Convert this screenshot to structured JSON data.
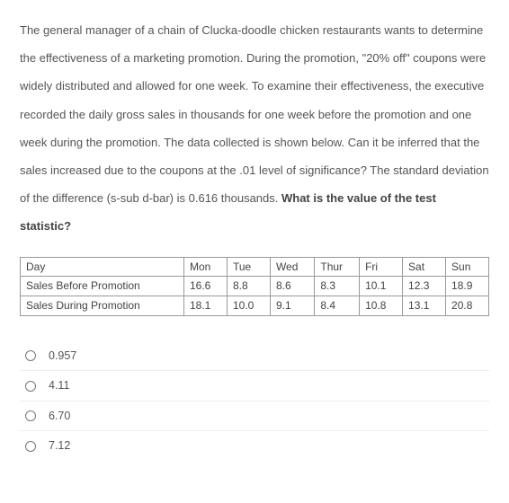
{
  "question": {
    "p1": "The general manager of a chain of Clucka-doodle chicken restaurants wants to determine the effectiveness of a marketing promotion. During the promotion, \"20% off\" coupons were widely distributed and allowed for one week. To examine their effectiveness, the executive recorded the daily gross sales in thousands for one week before the promotion and one week during the promotion. The data collected is shown below. Can it be inferred that the sales increased due to the coupons at the .01 level of significance? The standard deviation of the difference (s-sub d-bar) is 0.616 thousands. ",
    "bold": "What is the value of the test statistic?"
  },
  "table": {
    "header": [
      "Day",
      "Mon",
      "Tue",
      "Wed",
      "Thur",
      "Fri",
      "Sat",
      "Sun"
    ],
    "rows": [
      {
        "label": "Sales Before Promotion",
        "vals": [
          "16.6",
          "8.8",
          "8.6",
          "8.3",
          "10.1",
          "12.3",
          "18.9"
        ]
      },
      {
        "label": "Sales During Promotion",
        "vals": [
          "18.1",
          "10.0",
          "9.1",
          "8.4",
          "10.8",
          "13.1",
          "20.8"
        ]
      }
    ]
  },
  "options": [
    "0.957",
    "4.11",
    "6.70",
    "7.12"
  ]
}
